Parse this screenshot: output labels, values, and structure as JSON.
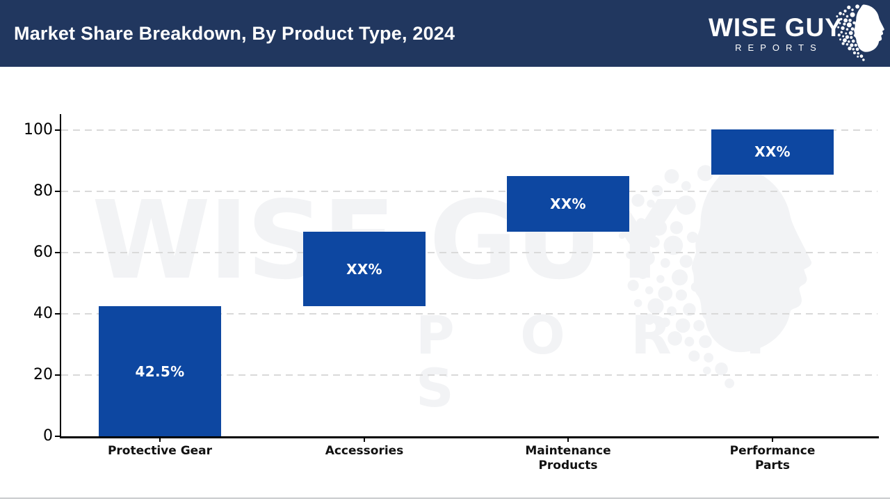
{
  "header": {
    "title": "Market Share Breakdown, By Product Type, 2024",
    "logo": {
      "line1": "WISE GUY",
      "line2": "REPORTS"
    }
  },
  "watermark": {
    "line1": "WISE GUY",
    "line2": "P O R T S"
  },
  "chart_data": {
    "type": "bar",
    "subtype": "floating-waterfall",
    "title": "Market Share Breakdown, By Product Type, 2024",
    "categories": [
      "Protective Gear",
      "Accessories",
      "Maintenance Products",
      "Performance Parts"
    ],
    "bars": [
      {
        "category": "Protective Gear",
        "start": 0,
        "end": 42.5,
        "label": "42.5%"
      },
      {
        "category": "Accessories",
        "start": 42.5,
        "end": 66.8,
        "label": "XX%"
      },
      {
        "category": "Maintenance Products",
        "start": 66.8,
        "end": 85.0,
        "label": "XX%"
      },
      {
        "category": "Performance Parts",
        "start": 85.5,
        "end": 100.3,
        "label": "XX%"
      }
    ],
    "yticks": [
      0,
      20,
      40,
      60,
      80,
      100
    ],
    "ylim": [
      0,
      104
    ],
    "xlabel": "",
    "ylabel": "",
    "grid": "horizontal-dashed",
    "legend": "none"
  },
  "colors": {
    "header_bg": "#21375f",
    "bar": "#0d47a1",
    "gridline": "#d9d9d9",
    "axis": "#000000",
    "watermark": "#f2f3f5",
    "bar_label": "#ffffff",
    "bottom_rule": "#c8cacc"
  }
}
